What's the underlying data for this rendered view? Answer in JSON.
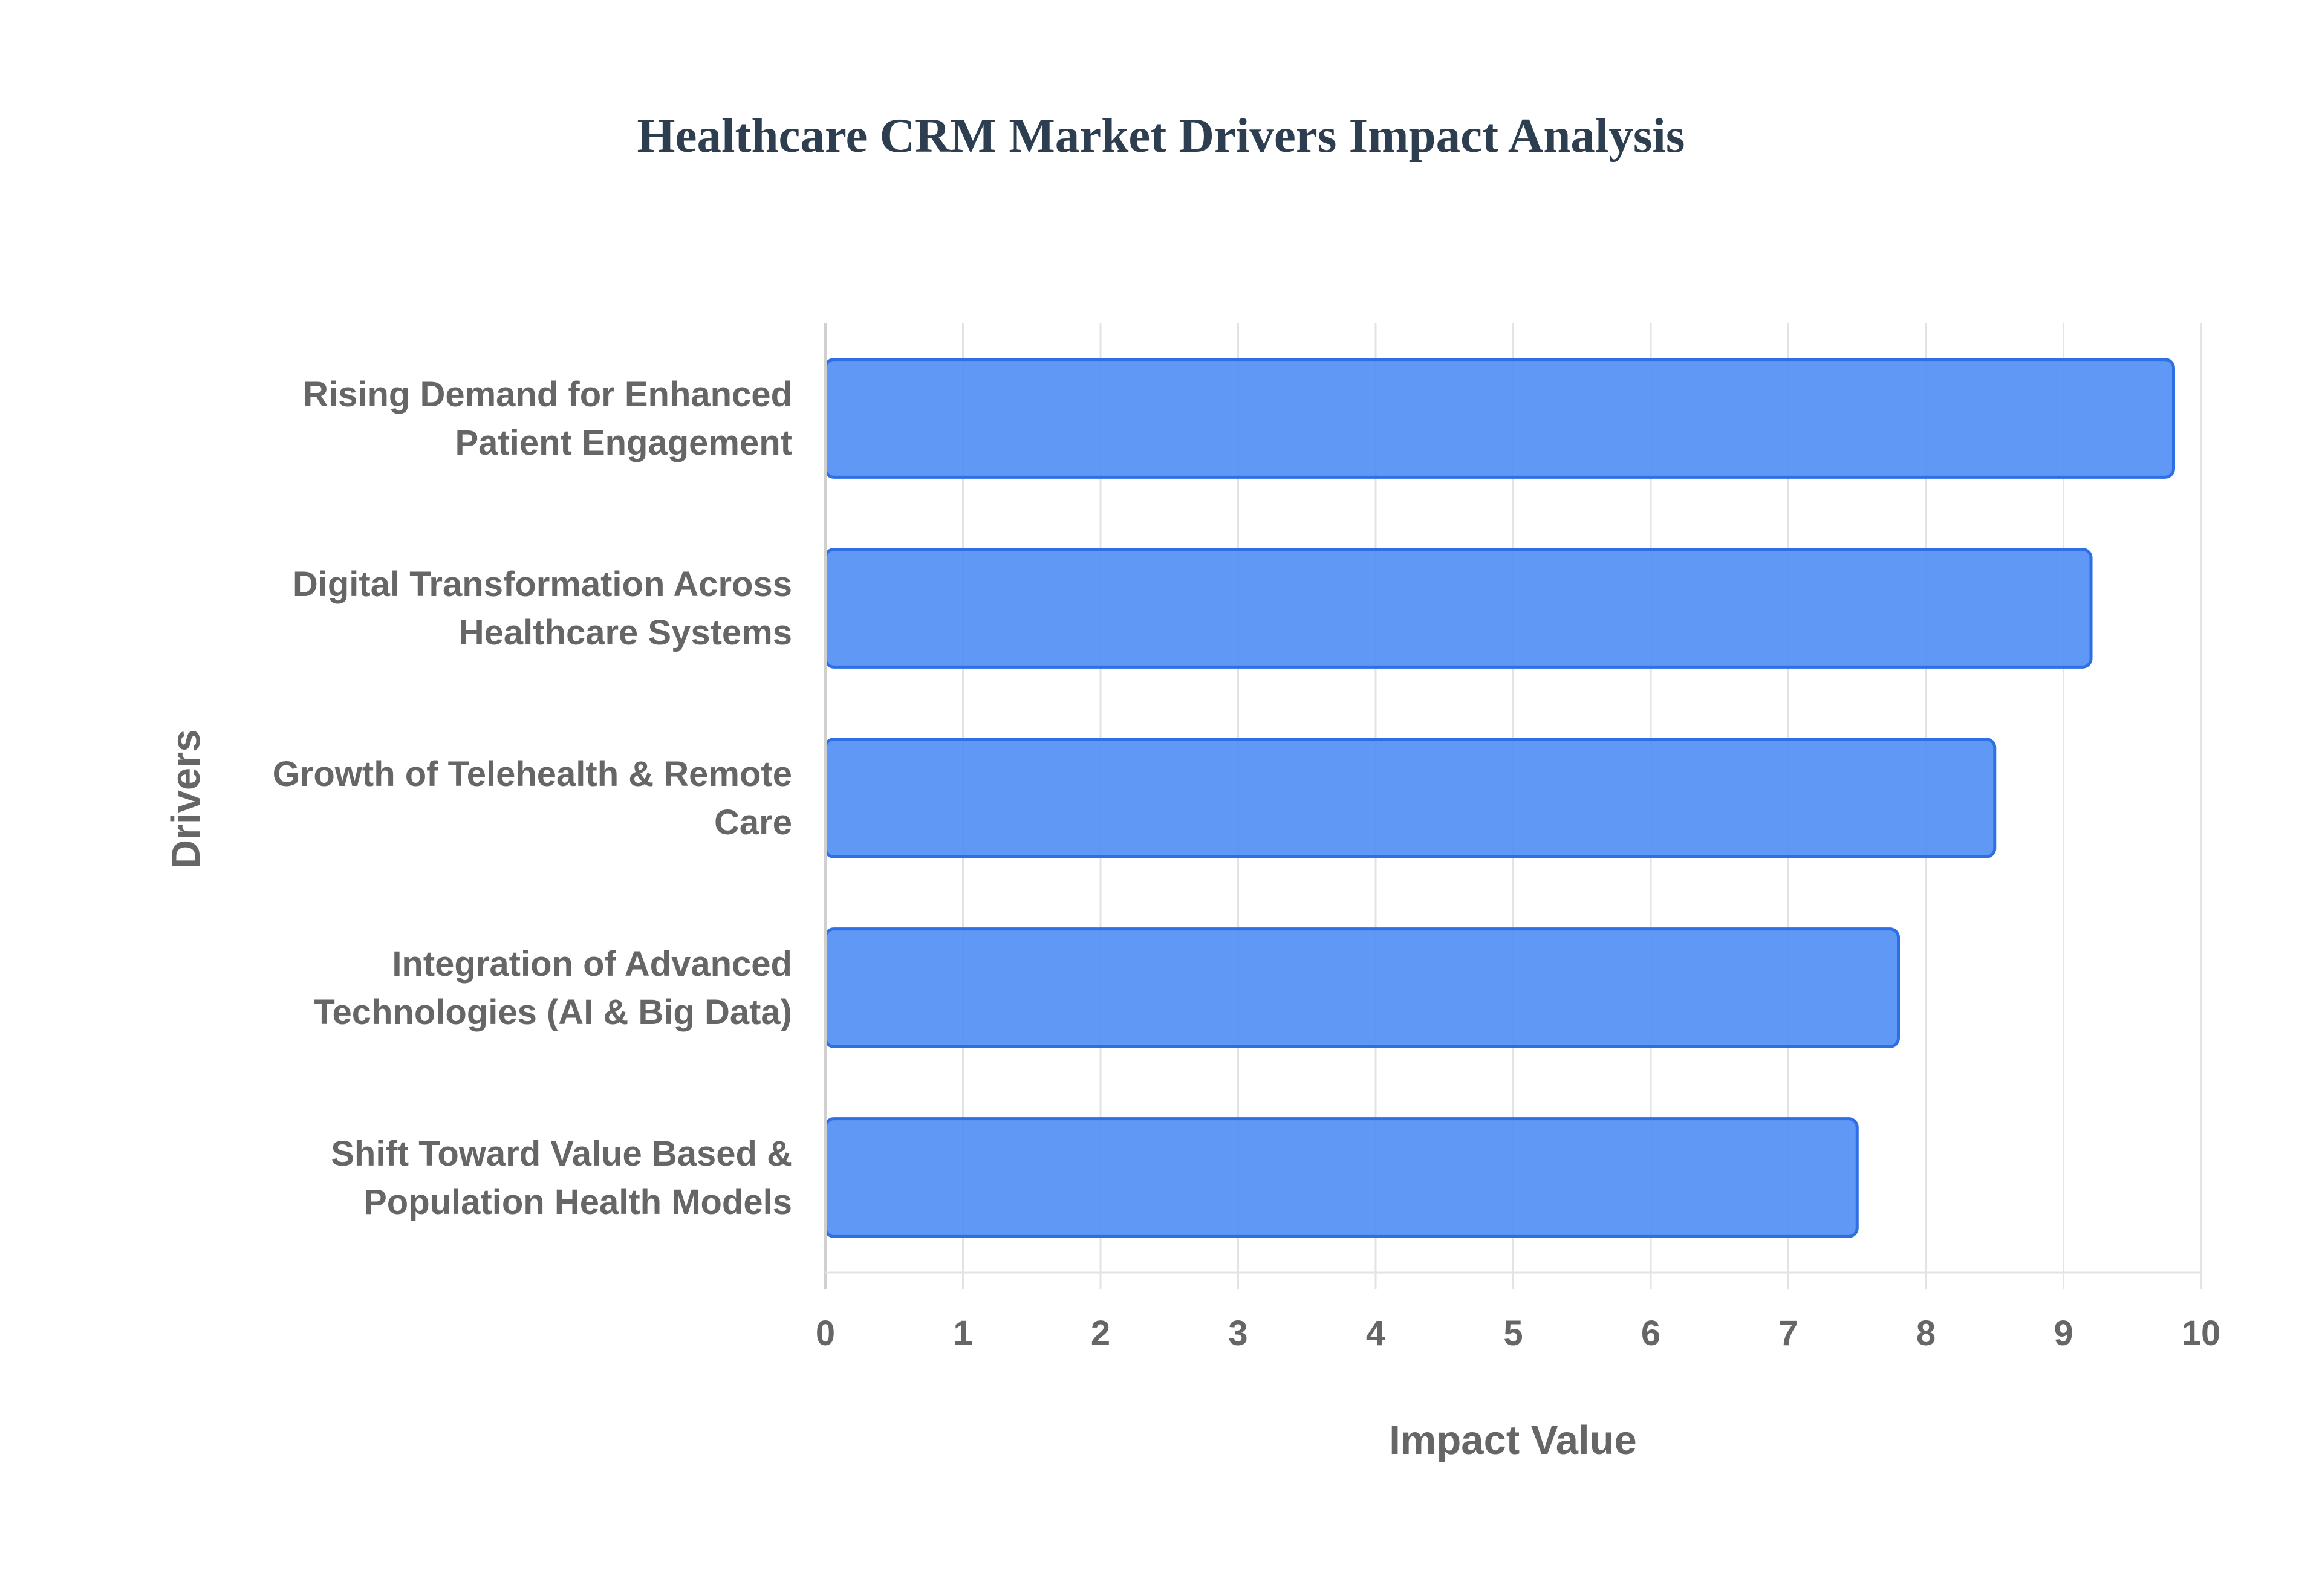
{
  "chart_data": {
    "type": "bar",
    "orientation": "horizontal",
    "title": "Healthcare CRM Market Drivers Impact Analysis",
    "xlabel": "Impact Value",
    "ylabel": "Drivers",
    "xlim": [
      0,
      10
    ],
    "x_ticks": [
      "0",
      "1",
      "2",
      "3",
      "4",
      "5",
      "6",
      "7",
      "8",
      "9",
      "10"
    ],
    "grid": true,
    "legend": "none",
    "bar_color": "#4f8df5",
    "bar_border_color": "#2f6fe6",
    "categories": [
      [
        "Rising Demand for Enhanced",
        "Patient Engagement"
      ],
      [
        "Digital Transformation Across",
        "Healthcare Systems"
      ],
      [
        "Growth of Telehealth & Remote",
        "Care"
      ],
      [
        "Integration of Advanced",
        "Technologies (AI & Big Data)"
      ],
      [
        "Shift Toward Value Based &",
        "Population Health Models"
      ]
    ],
    "values": [
      9.8,
      9.2,
      8.5,
      7.8,
      7.5
    ]
  }
}
